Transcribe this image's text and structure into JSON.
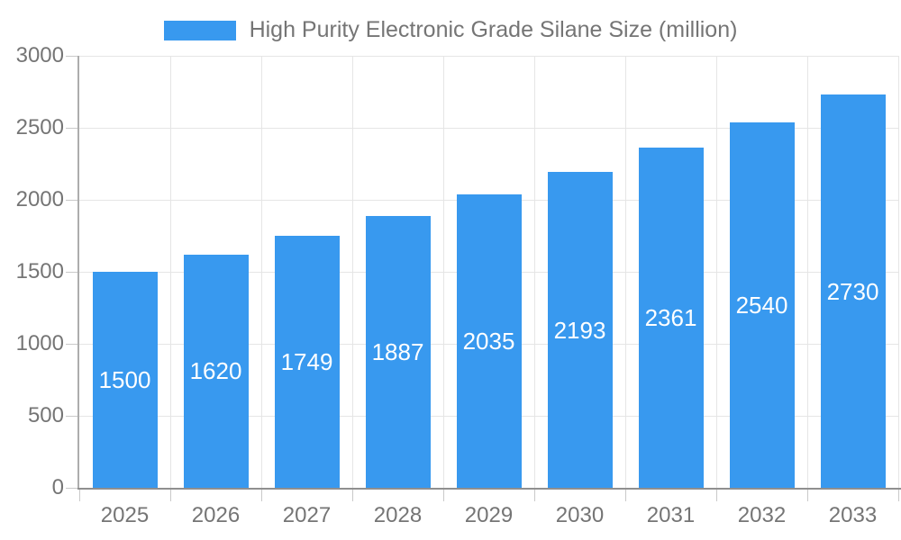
{
  "legend": {
    "label": "High Purity Electronic Grade Silane Size (million)"
  },
  "colors": {
    "bar": "#3899EF",
    "grid": "#E5E5E5",
    "axis_left": "#ADADAD",
    "axis_bottom": "#8F8F8F",
    "tick": "#C9C9C9",
    "label_text": "#757575",
    "value_text": "#FFFFFF",
    "background": "#FFFFFF"
  },
  "chart_data": {
    "type": "bar",
    "title": "",
    "categories": [
      "2025",
      "2026",
      "2027",
      "2028",
      "2029",
      "2030",
      "2031",
      "2032",
      "2033"
    ],
    "values": [
      1500,
      1620,
      1749,
      1887,
      2035,
      2193,
      2361,
      2540,
      2730
    ],
    "series_name": "High Purity Electronic Grade Silane Size (million)",
    "xlabel": "",
    "ylabel": "",
    "ylim": [
      0,
      3000
    ],
    "yticks": [
      0,
      500,
      1000,
      1500,
      2000,
      2500,
      3000
    ],
    "grid": true,
    "legend_position": "top",
    "value_labels_position": "inside-center",
    "value_labels_color": "#FFFFFF"
  }
}
